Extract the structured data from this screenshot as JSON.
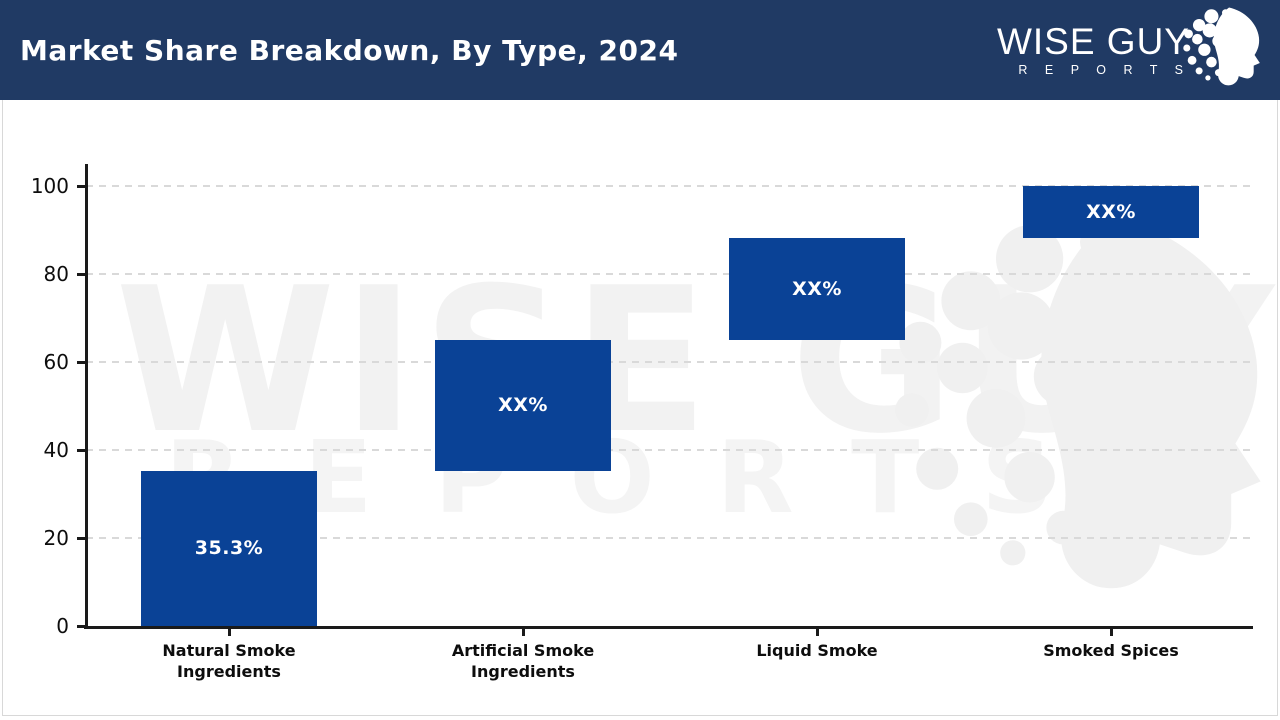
{
  "header": {
    "title": "Market Share Breakdown, By Type, 2024",
    "logo": {
      "line1": "WISE GUY",
      "line2": "R E P O R T S"
    }
  },
  "watermark": {
    "line1": "WISE GUY",
    "line2": "REPORTS"
  },
  "chart_data": {
    "type": "bar",
    "subtype": "waterfall",
    "title": "Market Share Breakdown, By Type, 2024",
    "categories": [
      "Natural Smoke Ingredients",
      "Artificial Smoke Ingredients",
      "Liquid Smoke",
      "Smoked Spices"
    ],
    "category_lines": [
      [
        "Natural Smoke",
        "Ingredients"
      ],
      [
        "Artificial Smoke",
        "Ingredients"
      ],
      [
        "Liquid Smoke"
      ],
      [
        "Smoked Spices"
      ]
    ],
    "segments": [
      {
        "category": "Natural Smoke Ingredients",
        "start": 0,
        "end": 35.3,
        "label": "35.3%"
      },
      {
        "category": "Artificial Smoke Ingredients",
        "start": 35.3,
        "end": 65,
        "label": "XX%"
      },
      {
        "category": "Liquid Smoke",
        "start": 65,
        "end": 88.2,
        "label": "XX%"
      },
      {
        "category": "Smoked Spices",
        "start": 88.2,
        "end": 100,
        "label": "XX%"
      }
    ],
    "yticks": [
      0,
      20,
      40,
      60,
      80,
      100
    ],
    "ylim": [
      0,
      105
    ],
    "xlabel": "",
    "ylabel": "",
    "legend": "none",
    "grid": "horizontal-dashed",
    "colors": {
      "bar": "#0a4296",
      "header_bg": "#203a64",
      "grid": "#d9d9d9",
      "axis": "#1a1a1a",
      "bar_label": "#ffffff",
      "tick_label": "#0d0d0d",
      "watermark": "#f2f2f2"
    }
  }
}
